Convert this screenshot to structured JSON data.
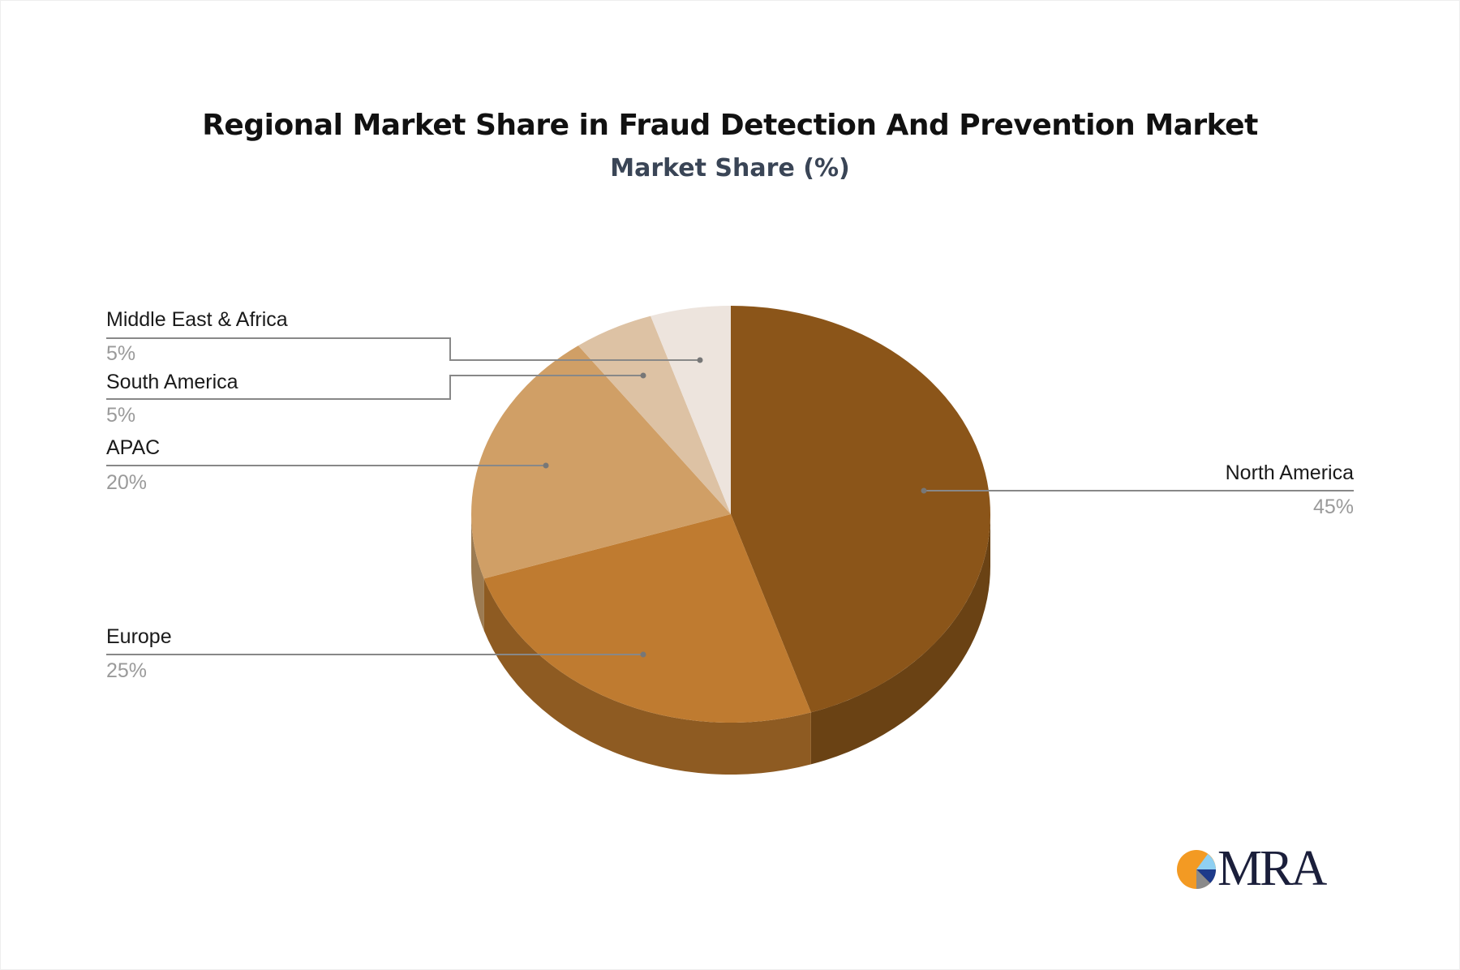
{
  "chart_data": {
    "type": "pie",
    "title": "Regional Market Share in Fraud Detection And Prevention Market",
    "subtitle": "Market Share (%)",
    "style": "3d",
    "slices": [
      {
        "label": "North America",
        "value": 45,
        "display": "45%",
        "color": "#8B5519",
        "side_color": "#6A4214"
      },
      {
        "label": "Europe",
        "value": 25,
        "display": "25%",
        "color": "#BF7B30",
        "side_color": "#8E5B22"
      },
      {
        "label": "APAC",
        "value": 20,
        "display": "20%",
        "color": "#D09F66",
        "side_color": "#9C7B52"
      },
      {
        "label": "South America",
        "value": 5,
        "display": "5%",
        "color": "#DDC2A4",
        "side_color": "#A89274"
      },
      {
        "label": "Middle East & Africa",
        "value": 5,
        "display": "5%",
        "color": "#EDE4DD",
        "side_color": "#B5ACA5"
      }
    ]
  },
  "logo": {
    "text": "MRA"
  }
}
